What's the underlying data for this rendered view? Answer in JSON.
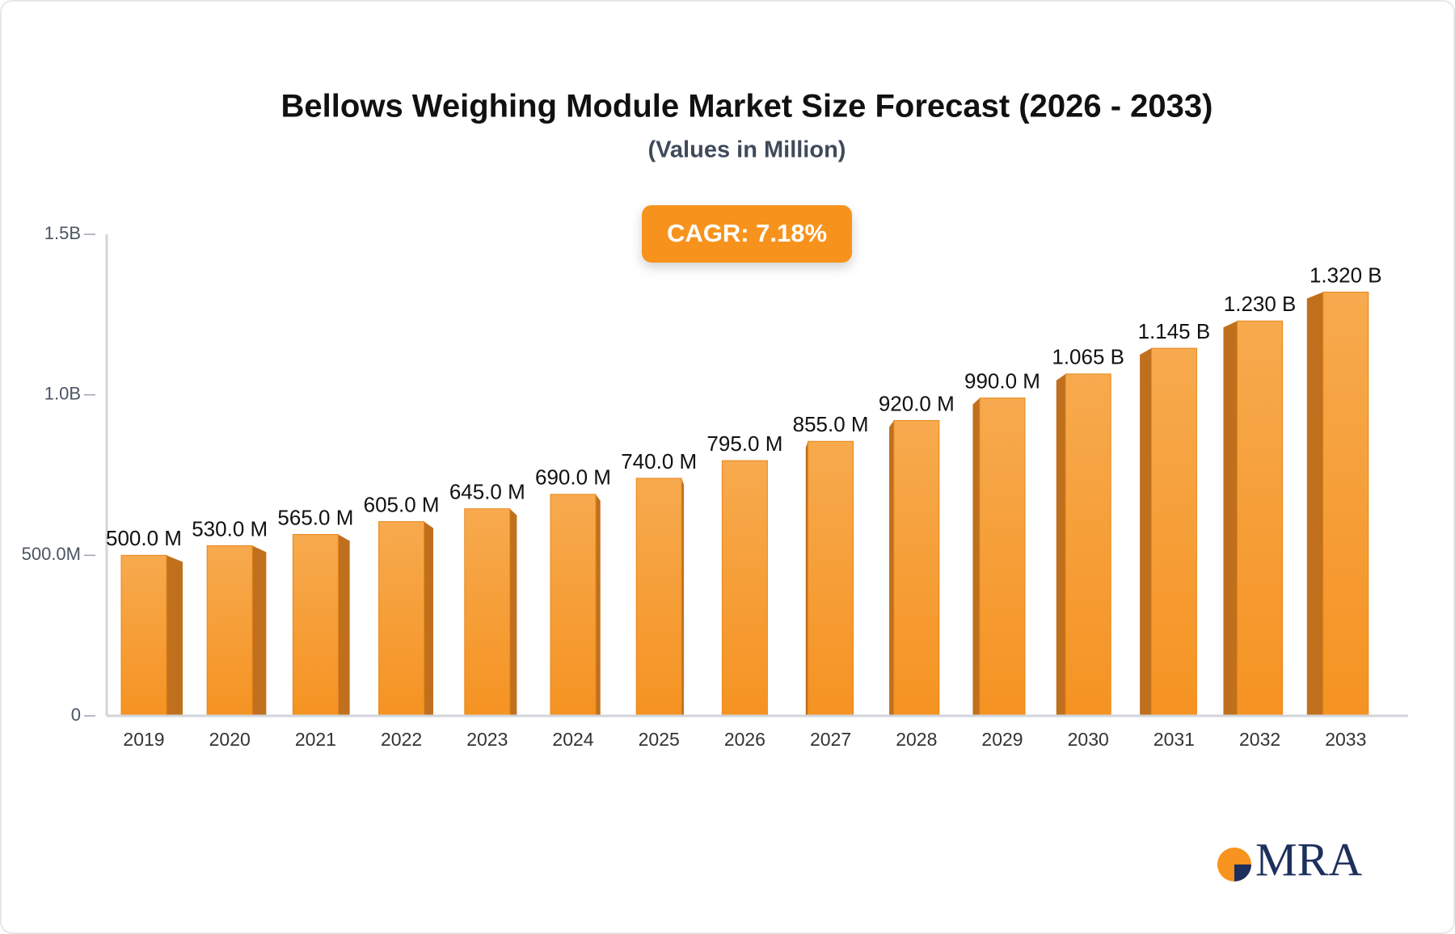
{
  "chart_data": {
    "type": "bar3d",
    "title": "Bellows Weighing Module Market Size Forecast (2026 - 2033)",
    "subtitle": "(Values in Million)",
    "annotation": "CAGR: 7.18%",
    "logo": "MRA",
    "categories": [
      "2019",
      "2020",
      "2021",
      "2022",
      "2023",
      "2024",
      "2025",
      "2026",
      "2027",
      "2028",
      "2029",
      "2030",
      "2031",
      "2032",
      "2033"
    ],
    "values": [
      500,
      530,
      565,
      605,
      645,
      690,
      740,
      795,
      855,
      920,
      990,
      1065,
      1145,
      1230,
      1320
    ],
    "value_labels": [
      "500.0 M",
      "530.0 M",
      "565.0 M",
      "605.0 M",
      "645.0 M",
      "690.0 M",
      "740.0 M",
      "795.0 M",
      "855.0 M",
      "920.0 M",
      "990.0 M",
      "1.065 B",
      "1.145 B",
      "1.230 B",
      "1.320 B"
    ],
    "color": "#f5a03a",
    "ylim": [
      0,
      1500
    ],
    "yticks": [
      0,
      {
        "value": 500,
        "label": "500.0M"
      },
      {
        "value": 1000,
        "label": "1.0B"
      },
      {
        "value": 1500,
        "label": "1.5B"
      }
    ],
    "grid": false
  }
}
